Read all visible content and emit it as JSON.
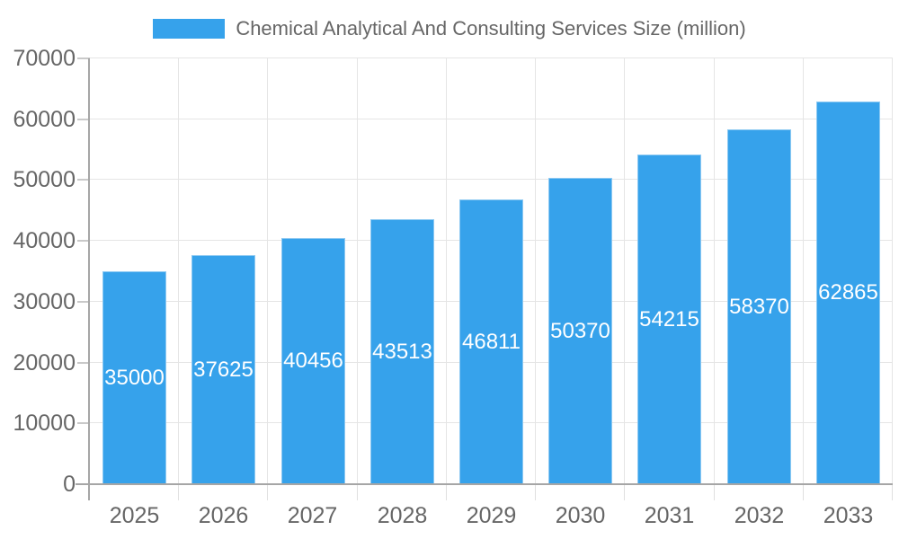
{
  "chart_data": {
    "type": "bar",
    "title": "Chemical Analytical And Consulting Services Size (million)",
    "categories": [
      "2025",
      "2026",
      "2027",
      "2028",
      "2029",
      "2030",
      "2031",
      "2032",
      "2033"
    ],
    "values": [
      35000,
      37625,
      40456,
      43513,
      46811,
      50370,
      54215,
      58370,
      62865
    ],
    "bar_value_labels": [
      "35000",
      "37625",
      "40456",
      "43513",
      "46811",
      "50370",
      "54215",
      "58370",
      "62865"
    ],
    "yticks": [
      "0",
      "10000",
      "20000",
      "30000",
      "40000",
      "50000",
      "60000",
      "70000"
    ],
    "ylim": [
      0,
      70000
    ],
    "ytick_step": 10000,
    "xlabel": "",
    "ylabel": "",
    "grid": "on",
    "legend_position": "top",
    "value_label_position": "inside-center"
  },
  "colors": {
    "bar": "#36a2eb",
    "text": "#666666",
    "grid": "#e5e5e5",
    "axis": "#a6a6a6",
    "tick": "#c9c9c9",
    "bar_label": "#ffffff",
    "background": "#ffffff"
  }
}
